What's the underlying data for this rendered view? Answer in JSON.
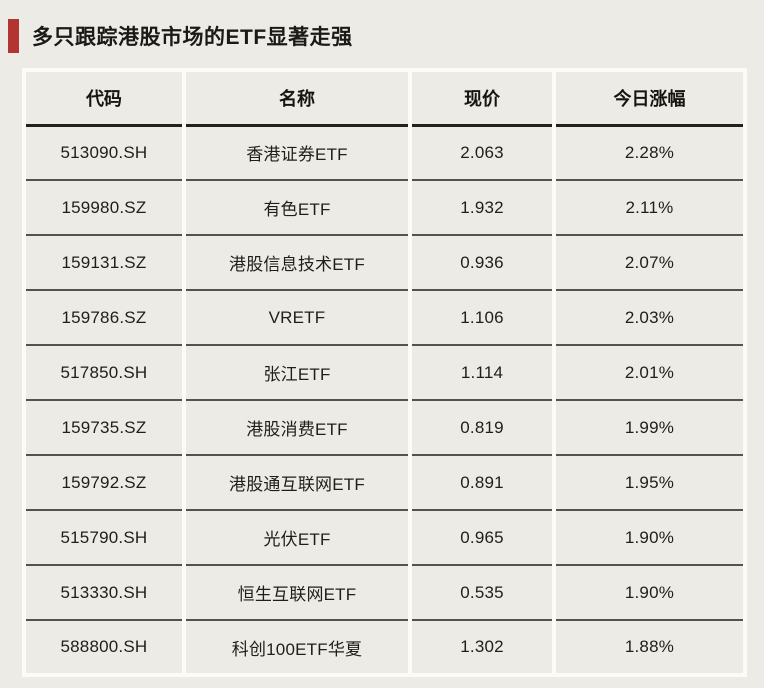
{
  "page": {
    "background_color": "#edebe6",
    "accent_color": "#b23531",
    "gridline_color": "#fcfbf8",
    "row_divider_color": "#54524c",
    "header_divider_color": "#23211e"
  },
  "title": "多只跟踪港股市场的ETF显著走强",
  "table": {
    "headers": [
      "代码",
      "名称",
      "现价",
      "今日涨幅"
    ],
    "rows": [
      [
        "513090.SH",
        "香港证券ETF",
        "2.063",
        "2.28%"
      ],
      [
        "159980.SZ",
        "有色ETF",
        "1.932",
        "2.11%"
      ],
      [
        "159131.SZ",
        "港股信息技术ETF",
        "0.936",
        "2.07%"
      ],
      [
        "159786.SZ",
        "VRETF",
        "1.106",
        "2.03%"
      ],
      [
        "517850.SH",
        "张江ETF",
        "1.114",
        "2.01%"
      ],
      [
        "159735.SZ",
        "港股消费ETF",
        "0.819",
        "1.99%"
      ],
      [
        "159792.SZ",
        "港股通互联网ETF",
        "0.891",
        "1.95%"
      ],
      [
        "515790.SH",
        "光伏ETF",
        "0.965",
        "1.90%"
      ],
      [
        "513330.SH",
        "恒生互联网ETF",
        "0.535",
        "1.90%"
      ],
      [
        "588800.SH",
        "科创100ETF华夏",
        "1.302",
        "1.88%"
      ]
    ]
  },
  "chart_data": {
    "type": "table",
    "title": "多只跟踪港股市场的ETF显著走强",
    "columns": [
      "代码",
      "名称",
      "现价",
      "今日涨幅"
    ],
    "rows": [
      [
        "513090.SH",
        "香港证券ETF",
        2.063,
        "2.28%"
      ],
      [
        "159980.SZ",
        "有色ETF",
        1.932,
        "2.11%"
      ],
      [
        "159131.SZ",
        "港股信息技术ETF",
        0.936,
        "2.07%"
      ],
      [
        "159786.SZ",
        "VRETF",
        1.106,
        "2.03%"
      ],
      [
        "517850.SH",
        "张江ETF",
        1.114,
        "2.01%"
      ],
      [
        "159735.SZ",
        "港股消费ETF",
        0.819,
        "1.99%"
      ],
      [
        "159792.SZ",
        "港股通互联网ETF",
        0.891,
        "1.95%"
      ],
      [
        "515790.SH",
        "光伏ETF",
        0.965,
        "1.90%"
      ],
      [
        "513330.SH",
        "恒生互联网ETF",
        0.535,
        "1.90%"
      ],
      [
        "588800.SH",
        "科创100ETF华夏",
        1.302,
        "1.88%"
      ]
    ]
  }
}
